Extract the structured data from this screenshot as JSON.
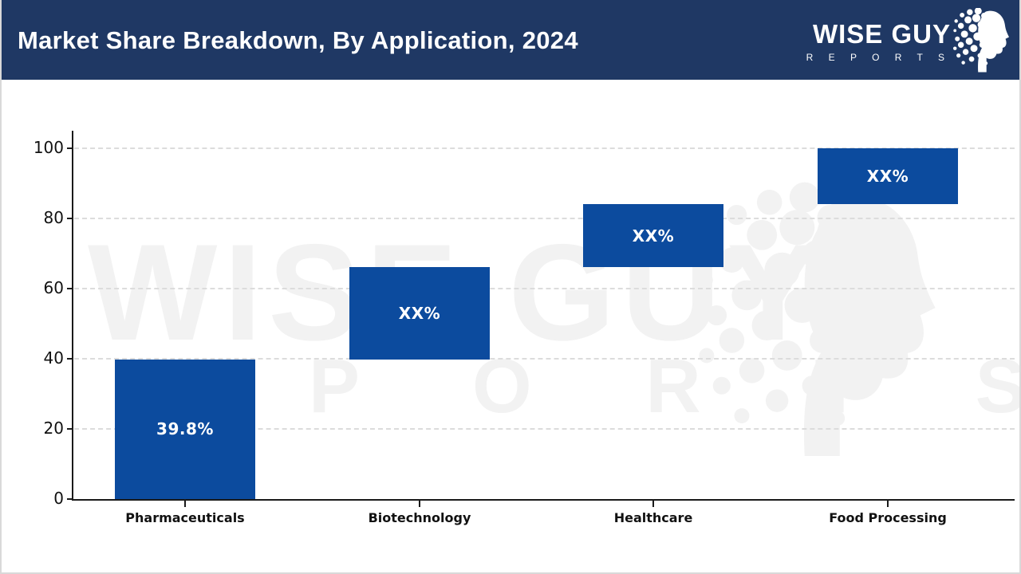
{
  "header": {
    "title": "Market Share Breakdown, By Application, 2024",
    "logo": {
      "line1": "WISE GUY",
      "line2": "R E P O R T S"
    }
  },
  "watermark": {
    "line1": "WISE GUY",
    "line2": "P O R T S"
  },
  "chart_data": {
    "type": "bar",
    "subtype": "waterfall-floating-bars",
    "title": "Market Share Breakdown, By Application, 2024",
    "categories": [
      "Pharmaceuticals",
      "Biotechnology",
      "Healthcare",
      "Food Processing"
    ],
    "bars": [
      {
        "category": "Pharmaceuticals",
        "start": 0,
        "end": 39.8,
        "value": 39.8,
        "label": "39.8%"
      },
      {
        "category": "Biotechnology",
        "start": 39.8,
        "end": 66.2,
        "value": 26.4,
        "label": "XX%"
      },
      {
        "category": "Healthcare",
        "start": 66.2,
        "end": 84.0,
        "value": 17.8,
        "label": "XX%"
      },
      {
        "category": "Food Processing",
        "start": 84.0,
        "end": 100.0,
        "value": 16.0,
        "label": "XX%"
      }
    ],
    "xlabel": "",
    "ylabel": "",
    "yticks": [
      0,
      20,
      40,
      60,
      80,
      100
    ],
    "ylim": [
      0,
      105
    ],
    "grid": "horizontal-dashed",
    "legend": "none",
    "colors": {
      "bar": "#0c4b9e",
      "bar_label_text": "#ffffff",
      "axis": "#1a1a1a",
      "gridline": "#dcdcdc",
      "header_bg": "#1f3864",
      "header_text": "#ffffff",
      "watermark": "#f2f2f2"
    }
  }
}
